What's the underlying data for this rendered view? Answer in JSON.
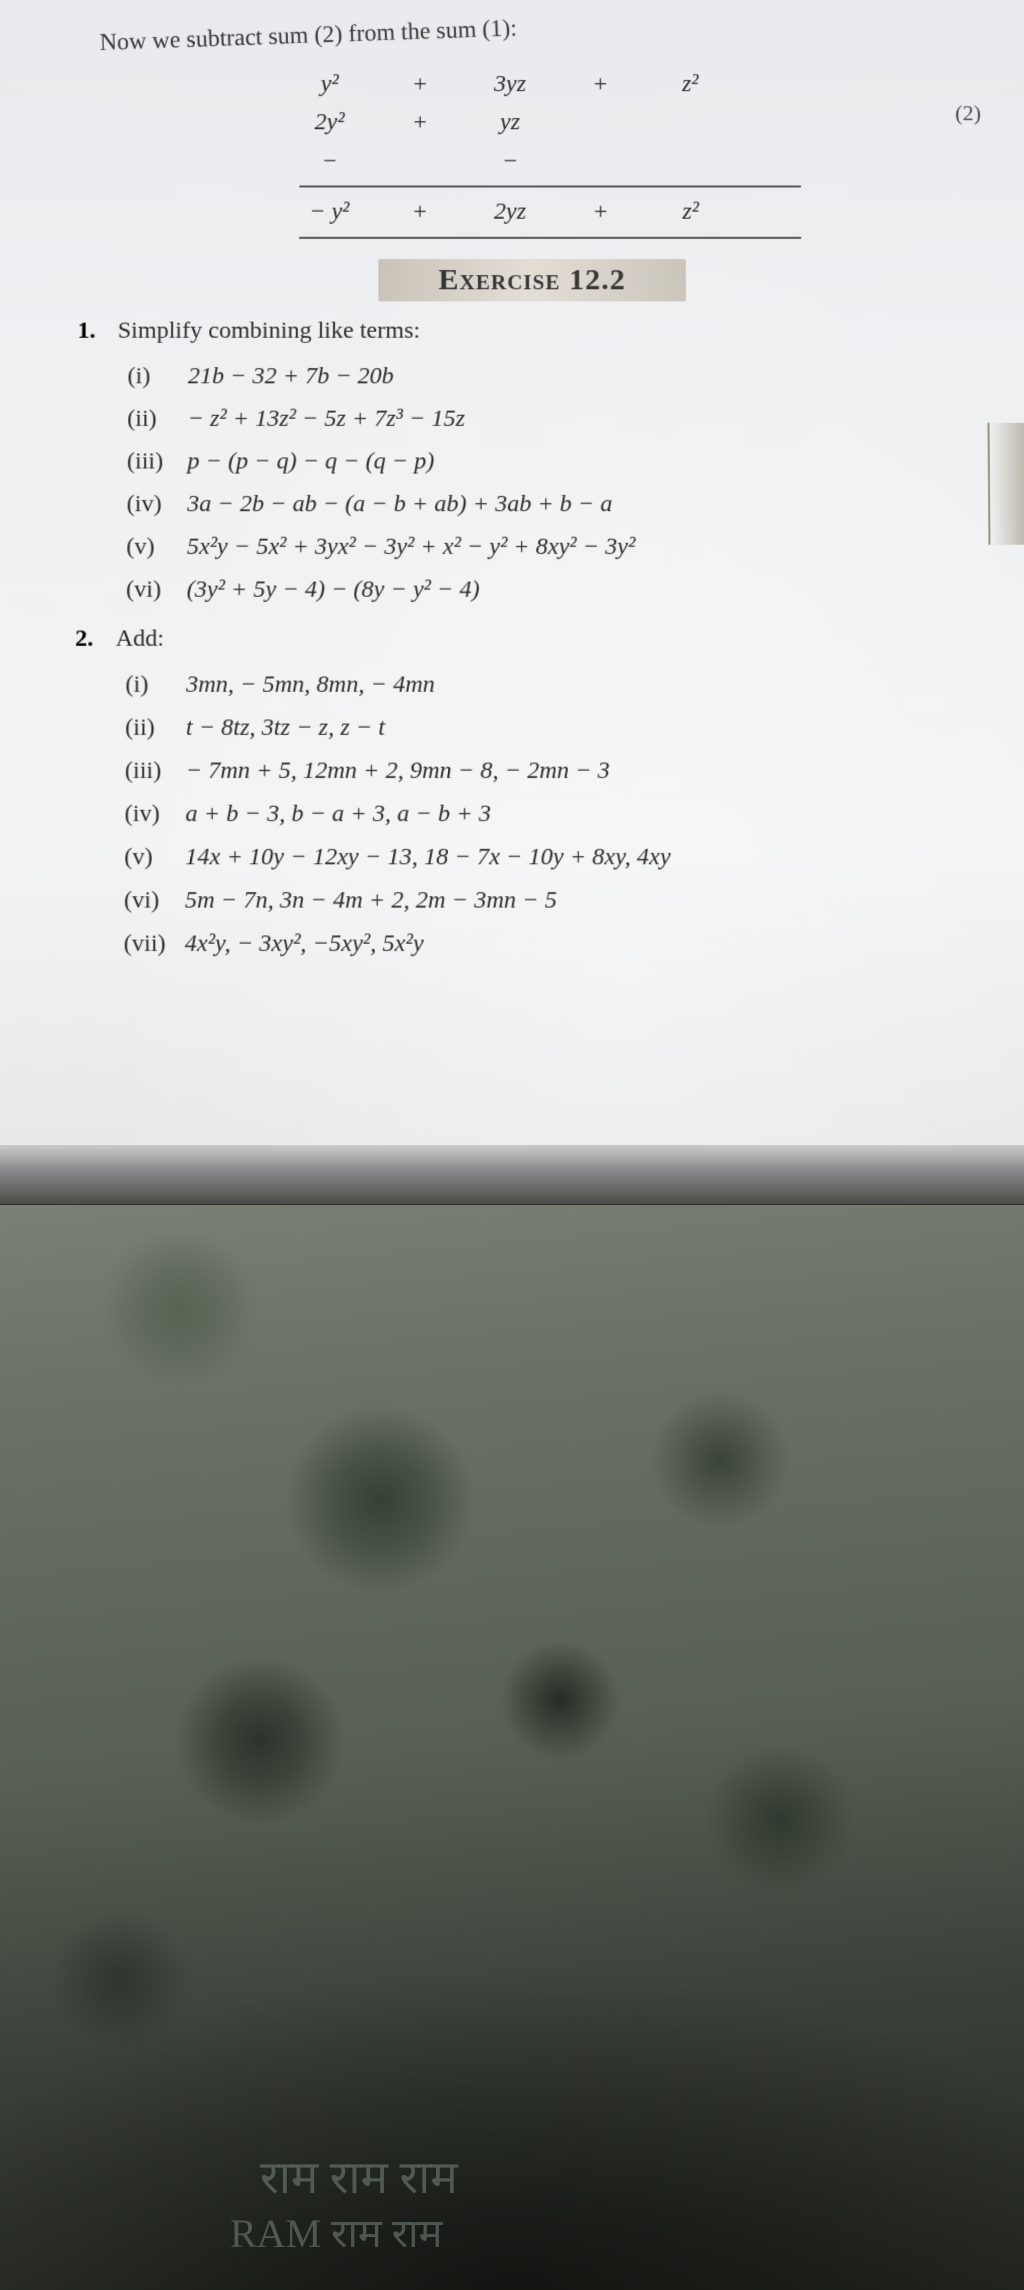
{
  "intro_line": "Now we subtract sum (2) from the sum (1):",
  "math": {
    "r1": {
      "a": "y²",
      "op1": "+",
      "b": "3yz",
      "op2": "+",
      "c": "z²"
    },
    "r2": {
      "a": "2y²",
      "op1": "+",
      "b": "yz",
      "op2": "",
      "c": ""
    },
    "r3": {
      "a": "−",
      "op1": "",
      "b": "−",
      "op2": "",
      "c": ""
    },
    "r4": {
      "a": "− y²",
      "op1": "+",
      "b": "2yz",
      "op2": "+",
      "c": "z²"
    },
    "eqnum": "(2)"
  },
  "exercise_title": "Exercise 12.2",
  "q1": {
    "num": "1.",
    "stem": "Simplify combining like terms:",
    "items": [
      {
        "label": "(i)",
        "math": "21b − 32 + 7b − 20b"
      },
      {
        "label": "(ii)",
        "math": "− z² + 13z² − 5z + 7z³ − 15z"
      },
      {
        "label": "(iii)",
        "math": "p − (p − q) − q − (q − p)"
      },
      {
        "label": "(iv)",
        "math": "3a − 2b − ab − (a − b + ab) + 3ab + b − a"
      },
      {
        "label": "(v)",
        "math": "5x²y − 5x² + 3yx² − 3y² + x² − y² + 8xy² − 3y²"
      },
      {
        "label": "(vi)",
        "math": "(3y² + 5y − 4) − (8y − y² − 4)"
      }
    ]
  },
  "q2": {
    "num": "2.",
    "stem": "Add:",
    "items": [
      {
        "label": "(i)",
        "math": "3mn, − 5mn, 8mn, − 4mn"
      },
      {
        "label": "(ii)",
        "math": "t − 8tz, 3tz − z, z − t"
      },
      {
        "label": "(iii)",
        "math": "− 7mn + 5, 12mn + 2, 9mn − 8, − 2mn − 3"
      },
      {
        "label": "(iv)",
        "math": "a + b − 3, b − a + 3, a − b + 3"
      },
      {
        "label": "(v)",
        "math": "14x + 10y − 12xy − 13, 18 − 7x − 10y + 8xy, 4xy"
      },
      {
        "label": "(vi)",
        "math": "5m − 7n, 3n − 4m + 2, 2m − 3mn − 5"
      },
      {
        "label": "(vii)",
        "math": "4x²y, − 3xy², −5xy², 5x²y"
      }
    ]
  },
  "handwriting": {
    "line1": "राम   राम   राम",
    "line2": "RAM   राम   राम"
  }
}
